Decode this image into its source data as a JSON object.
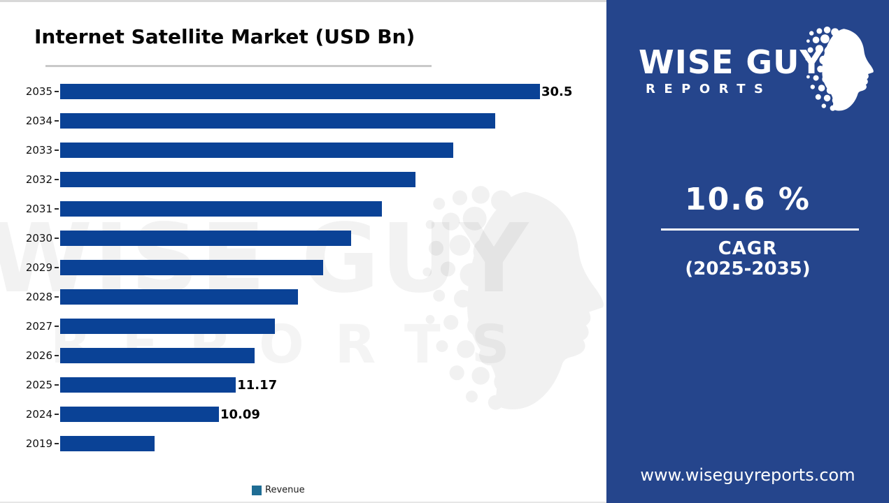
{
  "title": "Internet Satellite Market (USD Bn)",
  "chart_data": {
    "type": "bar",
    "orientation": "horizontal",
    "title": "Internet Satellite Market (USD Bn)",
    "categories": [
      "2035",
      "2034",
      "2033",
      "2032",
      "2031",
      "2030",
      "2029",
      "2028",
      "2027",
      "2026",
      "2025",
      "2024",
      "2019"
    ],
    "values": [
      30.5,
      27.65,
      25.0,
      22.6,
      20.44,
      18.48,
      16.71,
      15.11,
      13.66,
      12.35,
      11.17,
      10.09,
      6.0
    ],
    "bar_labels": [
      "30.5",
      "",
      "",
      "",
      "",
      "",
      "",
      "",
      "",
      "",
      "11.17",
      "10.09",
      ""
    ],
    "xlim": [
      0,
      30.5
    ],
    "series_name": "Revenue",
    "bar_color": "#0a4296",
    "legend_color": "#1f6d94",
    "grid": false,
    "legend_position": "bottom-center",
    "value_labels_shown_for": [
      "2035",
      "2025",
      "2024"
    ]
  },
  "watermark": {
    "line1": "WISE GUY",
    "line2": "REPORTS"
  },
  "brand": {
    "logo_line1": "WISE GUY",
    "logo_line2": "REPORTS",
    "cagr_value": "10.6 %",
    "cagr_label": "CAGR",
    "cagr_range": "(2025-2035)",
    "website": "www.wiseguyreports.com",
    "panel_color": "#25458c"
  }
}
